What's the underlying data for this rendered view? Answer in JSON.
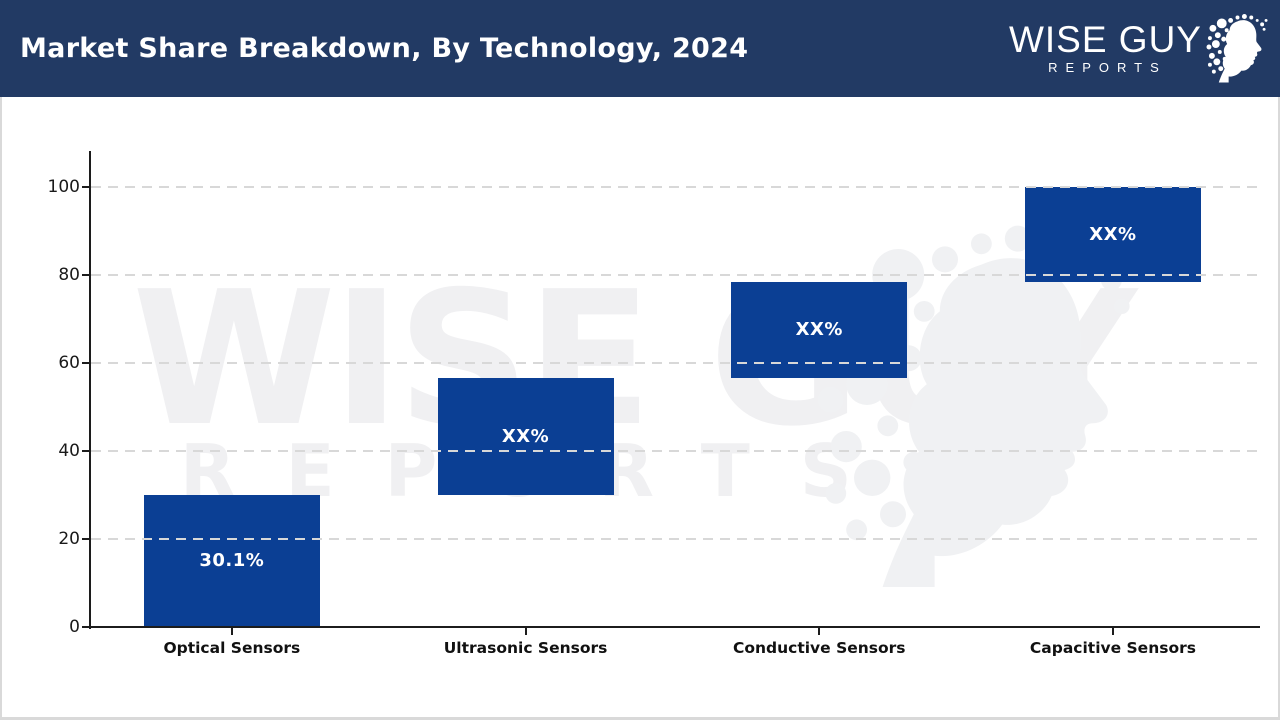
{
  "header": {
    "title": "Market Share Breakdown, By Technology, 2024",
    "bg_color": "#223a64",
    "logo": {
      "line1": "WISE GUY",
      "line2": "REPORTS"
    }
  },
  "watermark": {
    "line1": "WISE GUY",
    "line2": "REPORTS"
  },
  "chart_data": {
    "type": "bar",
    "subtype": "floating-waterfall",
    "title": "Market Share Breakdown, By Technology, 2024",
    "categories": [
      "Optical Sensors",
      "Ultrasonic Sensors",
      "Conductive Sensors",
      "Capacitive Sensors"
    ],
    "series": [
      {
        "name": "Market Share (%)",
        "segments": [
          {
            "category": "Optical Sensors",
            "start": 0,
            "end": 30.1,
            "label": "30.1%"
          },
          {
            "category": "Ultrasonic Sensors",
            "start": 30.1,
            "end": 56.5,
            "label": "XX%"
          },
          {
            "category": "Conductive Sensors",
            "start": 56.5,
            "end": 78.5,
            "label": "XX%"
          },
          {
            "category": "Capacitive Sensors",
            "start": 78.5,
            "end": 100,
            "label": "XX%"
          }
        ]
      }
    ],
    "xlabel": "",
    "ylabel": "",
    "ylim": [
      0,
      100
    ],
    "yticks": [
      0,
      20,
      40,
      60,
      80,
      100
    ],
    "grid": "horizontal-dashed",
    "grid_over_bars": true,
    "legend": "none",
    "bar_color": "#0b3f94",
    "bar_label_color": "#ffffff",
    "axis_color": "#1c1c1c",
    "gridline_color": "#d8d8d8",
    "watermark_color": "#f0f0f2"
  }
}
